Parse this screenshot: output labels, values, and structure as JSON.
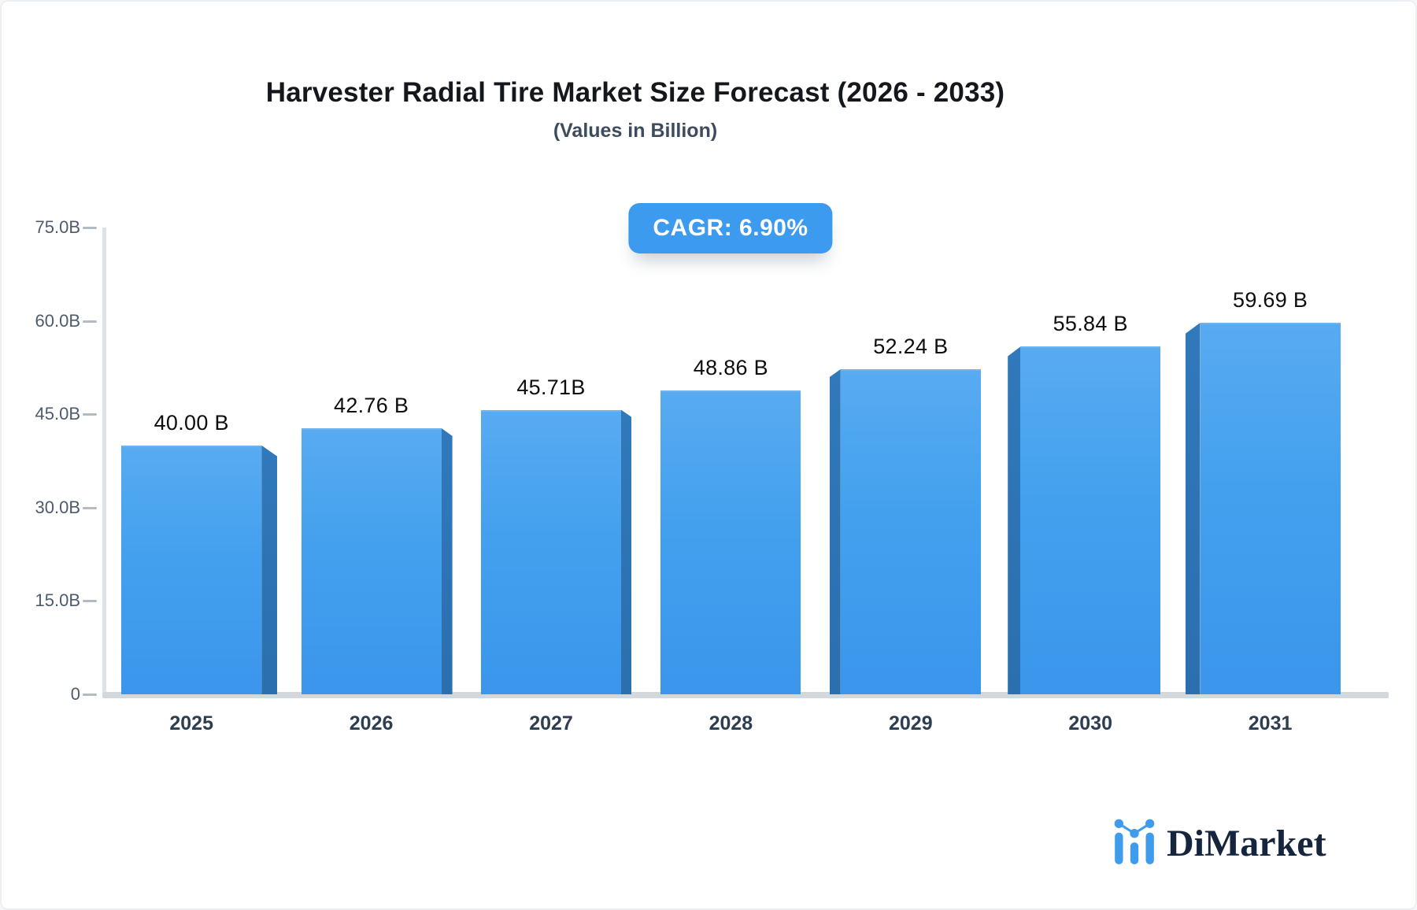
{
  "header": {
    "title": "Harvester Radial Tire Market Size Forecast (2026 - 2033)",
    "subtitle": "(Values in Billion)",
    "cagr_label": "CAGR: 6.90%"
  },
  "chart_data": {
    "type": "bar",
    "title": "Harvester Radial Tire Market Size Forecast (2026 - 2033)",
    "subtitle": "(Values in Billion)",
    "categories": [
      "2025",
      "2026",
      "2027",
      "2028",
      "2029",
      "2030",
      "2031"
    ],
    "values": [
      40.0,
      42.76,
      45.71,
      48.86,
      52.24,
      55.84,
      59.69
    ],
    "value_labels": [
      "40.00 B",
      "42.76 B",
      "45.71B",
      "48.86 B",
      "52.24 B",
      "55.84 B",
      "59.69 B"
    ],
    "y_axis": {
      "ticks": [
        {
          "label": "75.0B",
          "value": 75
        },
        {
          "label": "60.0B",
          "value": 60
        },
        {
          "label": "45.0B",
          "value": 45
        },
        {
          "label": "30.0B",
          "value": 30
        },
        {
          "label": "15.0B",
          "value": 15
        },
        {
          "label": "0",
          "value": 0
        }
      ],
      "min": 0,
      "max": 75
    },
    "grid": false,
    "legend": null,
    "annotations": [
      "CAGR: 6.90%"
    ],
    "bar_color": "#3f9ded",
    "bar_side_color": "#2d73b3",
    "style": "3d-perspective-bars"
  },
  "footer": {
    "brand_name": "DiMarket",
    "brand_icon": "mini-bar-chart-icon",
    "brand_color": "#16253e",
    "brand_icon_color": "#3f9ced"
  }
}
